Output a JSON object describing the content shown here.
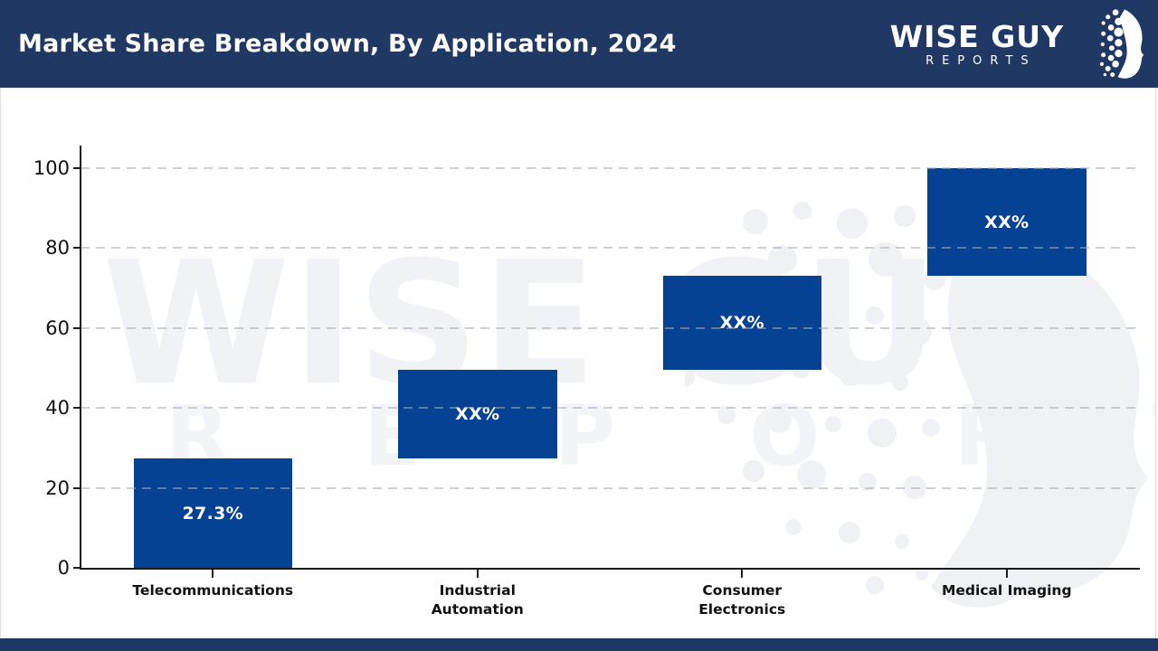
{
  "header": {
    "title": "Market Share Breakdown, By Application, 2024",
    "bg_color": "#1f3864",
    "logo": {
      "line1": "WISE GUY",
      "line2": "REPORTS"
    }
  },
  "watermark": {
    "line1": "WISE GUY",
    "line2": "R E P O R T S"
  },
  "chart_data": {
    "type": "bar",
    "subtype": "floating-waterfall",
    "title": "Market Share Breakdown, By Application, 2024",
    "categories": [
      "Telecommunications",
      "Industrial\nAutomation",
      "Consumer\nElectronics",
      "Medical Imaging"
    ],
    "segments": [
      {
        "category": "Telecommunications",
        "start": 0,
        "end": 27.3,
        "label": "27.3%"
      },
      {
        "category": "Industrial Automation",
        "start": 27.3,
        "end": 49.5,
        "label": "XX%"
      },
      {
        "category": "Consumer Electronics",
        "start": 49.5,
        "end": 73.0,
        "label": "XX%"
      },
      {
        "category": "Medical Imaging",
        "start": 73.0,
        "end": 100.0,
        "label": "XX%"
      }
    ],
    "xlabel": "",
    "ylabel": "",
    "yticks": [
      0,
      20,
      40,
      60,
      80,
      100
    ],
    "ylim": [
      0,
      105.2
    ],
    "grid": "horizontal dashed, drawn over bars",
    "legend": "none",
    "bar_color": "#064293",
    "bar_label_color": "#ffffff",
    "axis_color": "#1a1a1a"
  },
  "footer": {
    "bg_color": "#1f3864"
  }
}
